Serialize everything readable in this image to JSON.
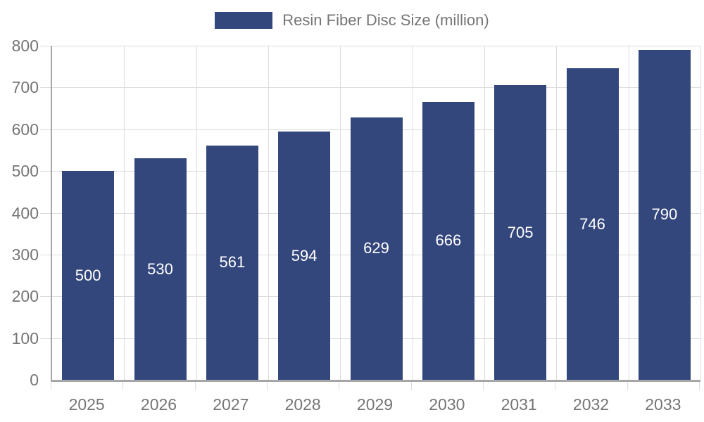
{
  "legend": {
    "label": "Resin Fiber Disc Size (million)"
  },
  "colors": {
    "bar": "#34477d",
    "bar_label": "#ffffff",
    "grid": "#dcdcdc",
    "axis": "#a6a6a6",
    "tick_text": "#757575",
    "background": "#ffffff"
  },
  "chart_data": {
    "type": "bar",
    "title": "Resin Fiber Disc Size (million)",
    "categories": [
      "2025",
      "2026",
      "2027",
      "2028",
      "2029",
      "2030",
      "2031",
      "2032",
      "2033"
    ],
    "values": [
      500,
      530,
      561,
      594,
      629,
      666,
      705,
      746,
      790
    ],
    "series": [
      {
        "name": "Resin Fiber Disc Size (million)",
        "values": [
          500,
          530,
          561,
          594,
          629,
          666,
          705,
          746,
          790
        ]
      }
    ],
    "xlabel": "",
    "ylabel": "",
    "ylim": [
      0,
      800
    ],
    "yticks": [
      0,
      100,
      200,
      300,
      400,
      500,
      600,
      700,
      800
    ],
    "grid": true,
    "legend_position": "top-center",
    "bar_label_position": "inside-center"
  }
}
